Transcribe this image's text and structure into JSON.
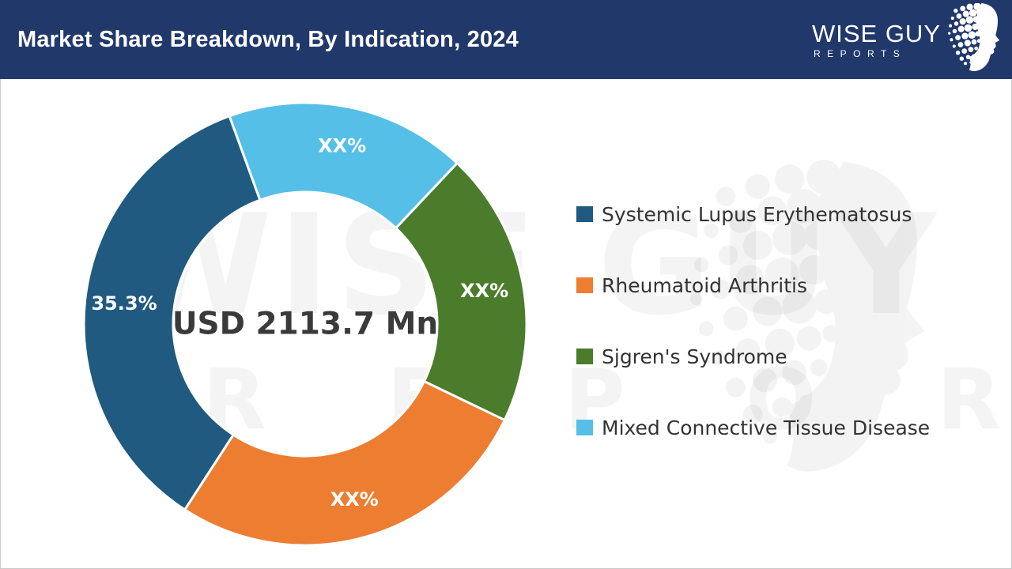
{
  "header": {
    "title": "Market Share Breakdown, By Indication, 2024",
    "logo_line1": "WISE GUY",
    "logo_line2": "REPORTS"
  },
  "watermark": {
    "line1": "WISE GUY",
    "line2": "R E P O R T S"
  },
  "chart_data": {
    "type": "pie",
    "subtype": "donut",
    "title": "Market Share Breakdown, By Indication, 2024",
    "center_label": "USD 2113.7 Mn",
    "start_angle_deg": 110,
    "direction": "counterclockwise",
    "legend_position": "right",
    "slices": [
      {
        "label": "Systemic Lupus Erythematosus",
        "display_value": "35.3%",
        "percent": 35.3,
        "color": "#215a80"
      },
      {
        "label": "Rheumatoid Arthritis",
        "display_value": "XX%",
        "percent": 27.0,
        "color": "#ed7d31"
      },
      {
        "label": "Sjgren's Syndrome",
        "display_value": "XX%",
        "percent": 20.1,
        "color": "#4a7c2b"
      },
      {
        "label": "Mixed Connective Tissue Disease",
        "display_value": "XX%",
        "percent": 17.6,
        "color": "#55bfe8"
      }
    ]
  }
}
